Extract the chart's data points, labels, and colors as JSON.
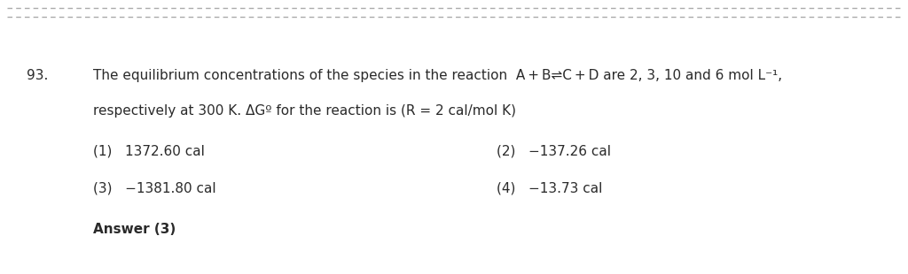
{
  "bg_color": "#ffffff",
  "text_color": "#2a2a2a",
  "dashed_line_color": "#aaaaaa",
  "question_number": "93.",
  "line1": "The equilibrium concentrations of the species in the reaction  A + B⇌C + D are 2, 3, 10 and 6 mol L⁻¹,",
  "line2": "respectively at 300 K. ΔGº for the reaction is (R = 2 cal/mol K)",
  "opt1": "(1)   1372.60 cal",
  "opt2": "(2)   −137.26 cal",
  "opt3": "(3)   −1381.80 cal",
  "opt4": "(4)   −13.73 cal",
  "answer": "Answer (3)",
  "fig_width": 10.24,
  "fig_height": 3.1,
  "dpi": 100
}
